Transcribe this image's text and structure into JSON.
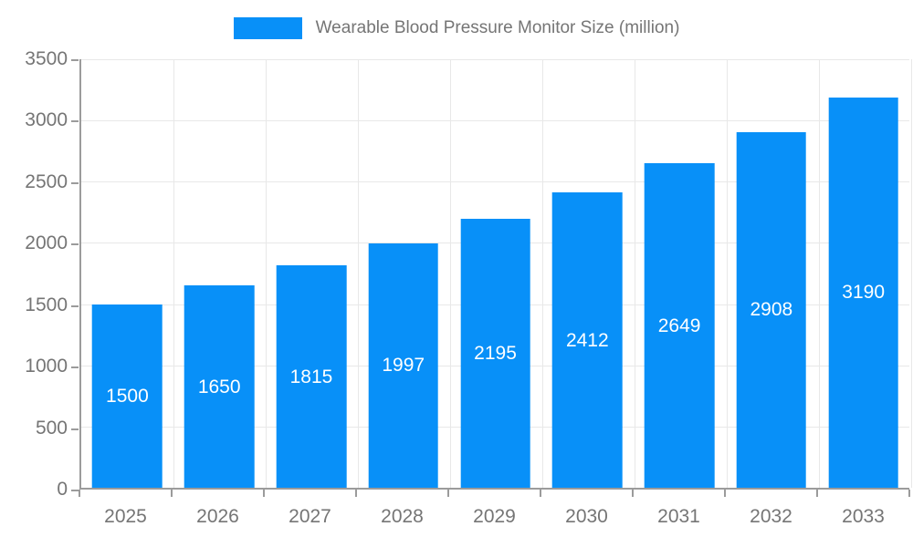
{
  "chart_data": {
    "type": "bar",
    "title": "Wearable Blood Pressure Monitor Size (million)",
    "categories": [
      "2025",
      "2026",
      "2027",
      "2028",
      "2029",
      "2030",
      "2031",
      "2032",
      "2033"
    ],
    "series": [
      {
        "name": "Wearable Blood Pressure Monitor Size (million)",
        "values": [
          1500,
          1650,
          1815,
          1997,
          2195,
          2412,
          2649,
          2908,
          3190
        ]
      }
    ],
    "data_labels": [
      "1500",
      "1650",
      "1815",
      "1997",
      "2195",
      "2412",
      "2649",
      "2908",
      "3190"
    ],
    "xlabel": "",
    "ylabel": "",
    "ylim": [
      0,
      3500
    ],
    "ytick_step": 500,
    "ytick_labels": [
      "0",
      "500",
      "1000",
      "1500",
      "2000",
      "2500",
      "3000",
      "3500"
    ],
    "grid": true,
    "legend_position": "top",
    "colors": {
      "bar": "#0890F8",
      "bar_label_text": "#ffffff",
      "axis_text": "#757575",
      "axis_line": "#9b9b9b",
      "gridline": "#e8e8e8",
      "background": "#ffffff"
    }
  }
}
